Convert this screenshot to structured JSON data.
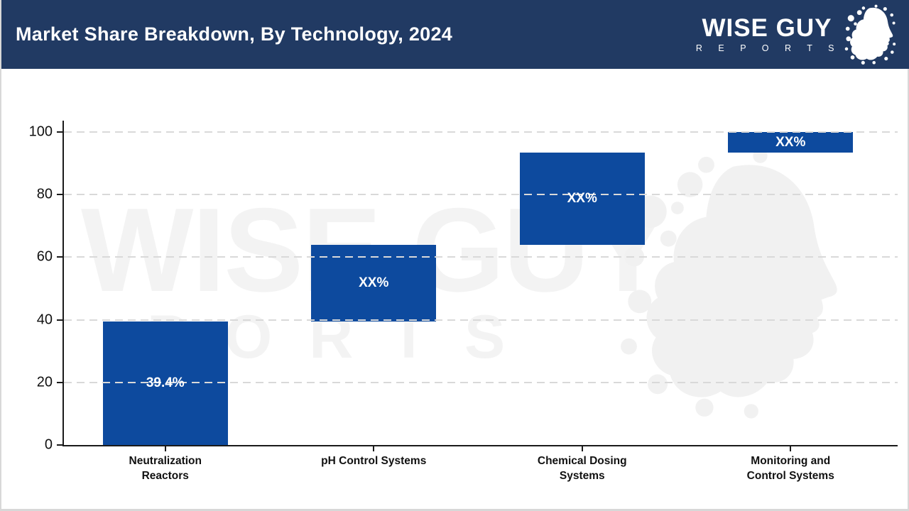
{
  "header": {
    "title": "Market Share Breakdown, By Technology, 2024",
    "bg_color": "#213a63",
    "logo": {
      "name": "WISE GUY",
      "sub": "R E P O R T S"
    }
  },
  "watermark": {
    "line1": "WISE GUY.",
    "line2": "PORTS"
  },
  "chart_data": {
    "type": "bar",
    "subtype": "waterfall",
    "title": "Market Share Breakdown, By Technology, 2024",
    "xlabel": "",
    "ylabel": "",
    "ylim": [
      0,
      100
    ],
    "yticks": [
      0,
      20,
      40,
      60,
      80,
      100
    ],
    "grid": "horizontal-dashed",
    "legend": "none",
    "bar_color": "#0d4a9e",
    "categories": [
      "Neutralization Reactors",
      "pH Control Systems",
      "Chemical Dosing Systems",
      "Monitoring and Control Systems"
    ],
    "segments": [
      {
        "category_lines": [
          "Neutralization",
          "Reactors"
        ],
        "start": 0,
        "end": 39.4,
        "label": "39.4%"
      },
      {
        "category_lines": [
          "pH Control Systems"
        ],
        "start": 39.4,
        "end": 64.0,
        "label": "XX%"
      },
      {
        "category_lines": [
          "Chemical Dosing",
          "Systems"
        ],
        "start": 64.0,
        "end": 93.4,
        "label": "XX%"
      },
      {
        "category_lines": [
          "Monitoring and",
          "Control Systems"
        ],
        "start": 93.4,
        "end": 100.0,
        "label": "XX%"
      }
    ]
  }
}
